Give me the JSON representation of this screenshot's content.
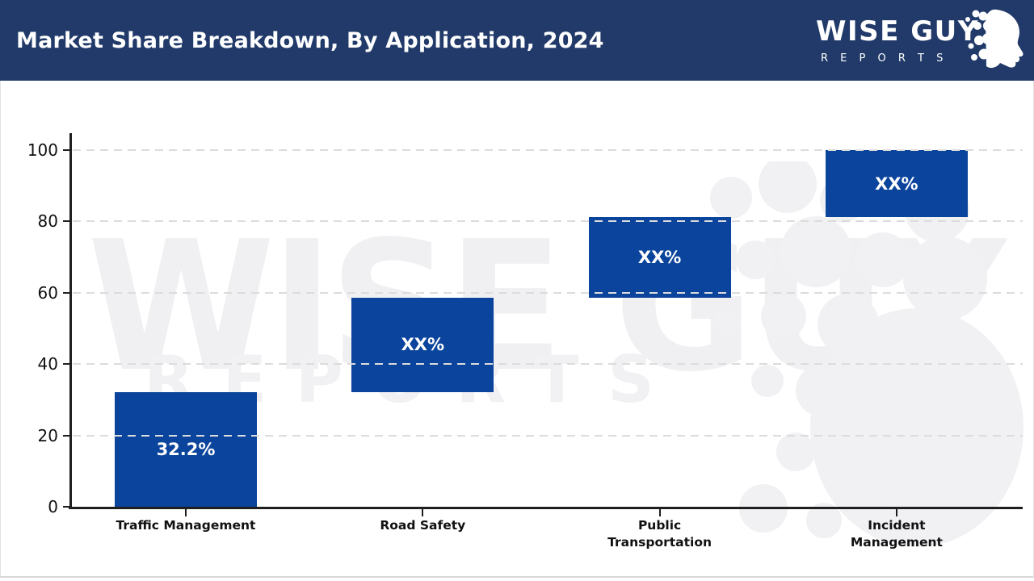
{
  "header": {
    "title": "Market Share Breakdown, By Application, 2024",
    "logo": {
      "wordmark": "WISE GUY",
      "subtitle": "R E P O R T S"
    },
    "colors": {
      "background": "#213a69",
      "text": "#ffffff"
    }
  },
  "watermark": {
    "wordmark": "WISE GUY",
    "subtitle": "R E P O R T S"
  },
  "chart_data": {
    "type": "waterfall-bar",
    "title": "Market Share Breakdown, By Application, 2024",
    "categories": [
      "Traffic Management",
      "Road Safety",
      "Public Transportation",
      "Incident Management"
    ],
    "category_label_lines": [
      [
        "Traffic Management"
      ],
      [
        "Road Safety"
      ],
      [
        "Public",
        "Transportation"
      ],
      [
        "Incident",
        "Management"
      ]
    ],
    "segments": [
      {
        "category": "Traffic Management",
        "start": 0,
        "end": 32.2,
        "value": 32.2,
        "label": "32.2%"
      },
      {
        "category": "Road Safety",
        "start": 32.2,
        "end": 58.7,
        "value": 26.5,
        "label": "XX%"
      },
      {
        "category": "Public Transportation",
        "start": 58.7,
        "end": 81.2,
        "value": 22.5,
        "label": "XX%"
      },
      {
        "category": "Incident Management",
        "start": 81.2,
        "end": 100,
        "value": 18.8,
        "label": "XX%"
      }
    ],
    "ylim": [
      0,
      100
    ],
    "yticks": [
      0,
      20,
      40,
      60,
      80,
      100
    ],
    "grid": {
      "horizontal": true,
      "style": "dashed",
      "color": "#dcdcdc",
      "above_bars": true
    },
    "bar_color": "#0b449c",
    "bar_label_color": "#ffffff",
    "axis_color": "#1f1f1f",
    "legend": "none"
  }
}
